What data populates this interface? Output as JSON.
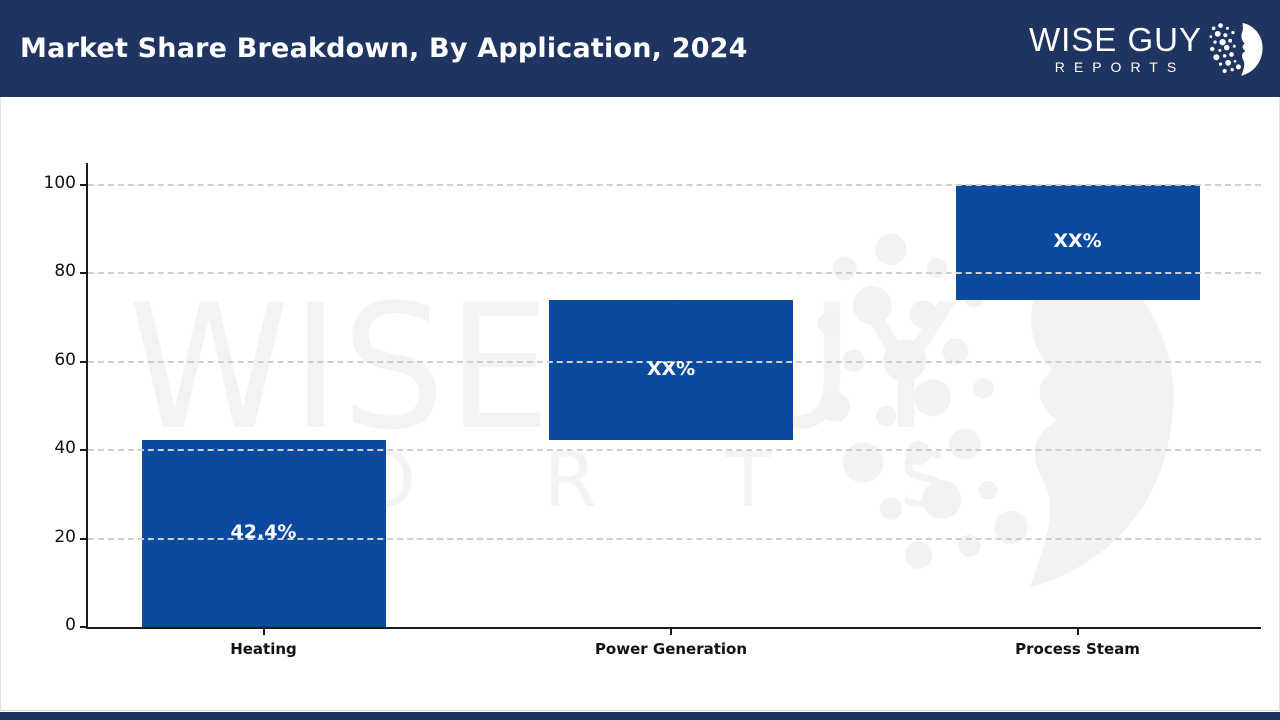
{
  "header": {
    "title": "Market Share Breakdown, By Application, 2024",
    "logo": {
      "brand_line1": "WISE GUY",
      "brand_line2": "REPORTS"
    }
  },
  "watermark": {
    "brand_line1": "WISE GUY",
    "brand_line2": "P O R T S"
  },
  "chart_data": {
    "type": "bar",
    "subtype": "waterfall-floating-bars",
    "title": "Market Share Breakdown, By Application, 2024",
    "categories": [
      "Heating",
      "Power Generation",
      "Process Steam"
    ],
    "segments": [
      {
        "category": "Heating",
        "start": 0,
        "end": 42.4,
        "label": "42.4%"
      },
      {
        "category": "Power Generation",
        "start": 42.4,
        "end": 74,
        "label": "XX%"
      },
      {
        "category": "Process Steam",
        "start": 74,
        "end": 100,
        "label": "XX%"
      }
    ],
    "xlabel": "",
    "ylabel": "",
    "ylim": [
      0,
      100
    ],
    "yticks": [
      0,
      20,
      40,
      60,
      80,
      100
    ],
    "grid": {
      "horizontal": true,
      "style": "dashed",
      "drawn_over_bars": true
    },
    "legend": "none",
    "bar_color": "#0b4a9e",
    "bar_label_color": "#ffffff",
    "masked_values_note": "Power Generation and Process Steam values are masked as XX% in the image; start/end read from axis position"
  },
  "colors": {
    "header_bg": "#203462",
    "footer_bg": "#203462",
    "page_bg": "#ffffff",
    "bar": "#0b4a9e",
    "axis": "#1a1a1a",
    "grid": "#cfcfcf",
    "title_text": "#ffffff",
    "watermark": "#f3f3f3"
  }
}
